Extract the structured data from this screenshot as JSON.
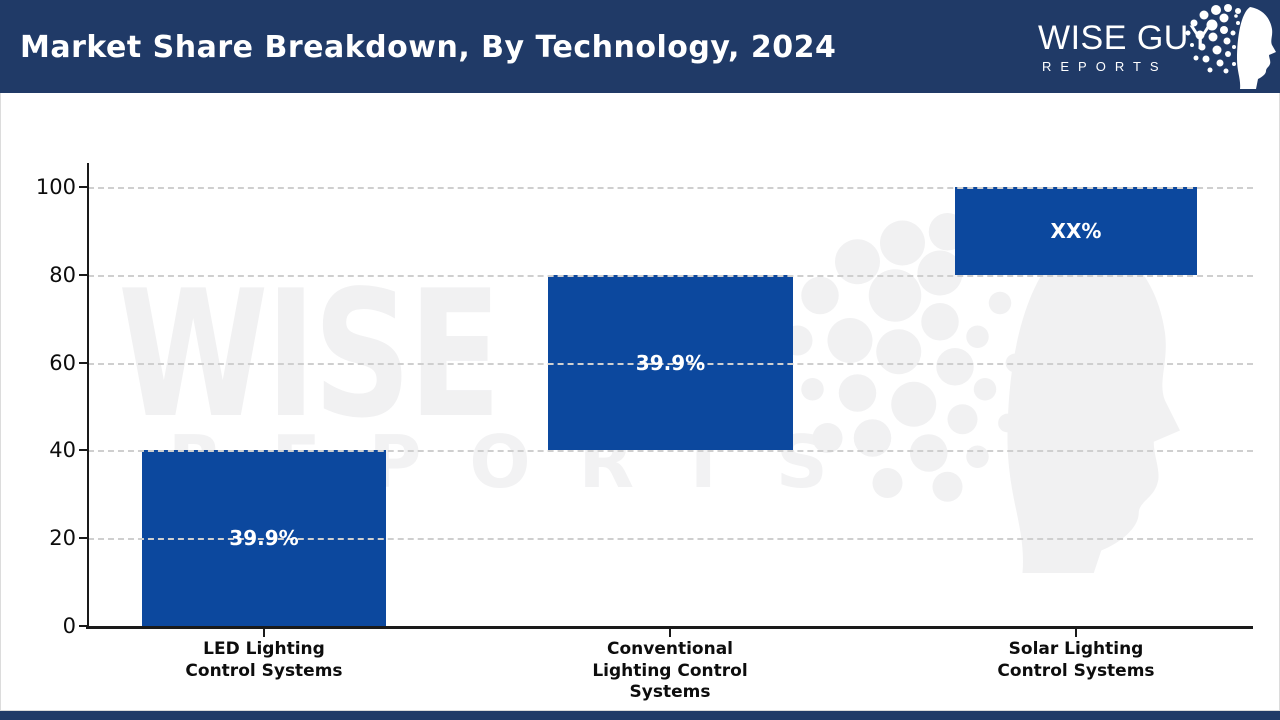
{
  "header": {
    "title": "Market Share Breakdown, By Technology, 2024",
    "bg_color": "#203a67",
    "logo": {
      "line1": "WISE GUY",
      "line2": "REPORTS"
    }
  },
  "watermark": {
    "text1": "WISE",
    "text2": "REPORTS"
  },
  "chart_data": {
    "type": "bar",
    "variant": "waterfall",
    "title": "Market Share Breakdown, By Technology, 2024",
    "xlabel": "",
    "ylabel": "",
    "categories": [
      {
        "name": "LED Lighting Control Systems",
        "lines": [
          "LED Lighting",
          "Control Systems"
        ]
      },
      {
        "name": "Conventional Lighting Control Systems",
        "lines": [
          "Conventional",
          "Lighting Control",
          "Systems"
        ]
      },
      {
        "name": "Solar Lighting Control Systems",
        "lines": [
          "Solar Lighting",
          "Control Systems"
        ]
      }
    ],
    "bars": [
      {
        "category": "LED Lighting Control Systems",
        "start": 0,
        "end": 40,
        "value_label": "39.9%"
      },
      {
        "category": "Conventional Lighting Control Systems",
        "start": 40,
        "end": 80,
        "value_label": "39.9%"
      },
      {
        "category": "Solar Lighting Control Systems",
        "start": 80,
        "end": 100,
        "value_label": "XX%"
      }
    ],
    "y_ticks": [
      0,
      20,
      40,
      60,
      80,
      100
    ],
    "ylim": [
      0,
      108
    ],
    "grid": "horizontal-dashed",
    "gridline_color": "#cfcfcf",
    "bar_color": "#0c489e",
    "value_label_color": "#ffffff",
    "legend": null
  }
}
